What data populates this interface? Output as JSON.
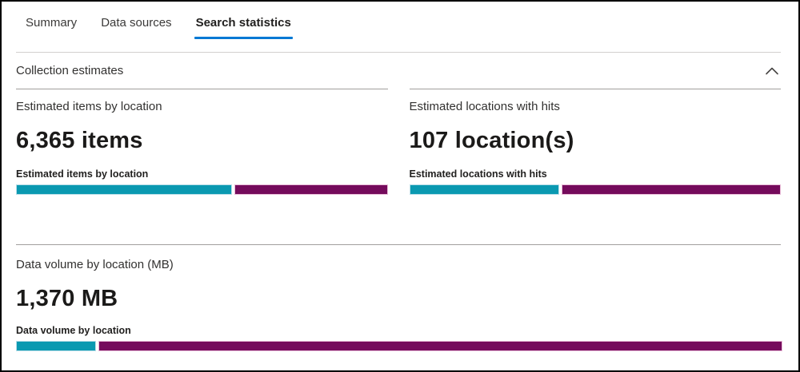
{
  "tabs": {
    "items": [
      {
        "label": "Summary"
      },
      {
        "label": "Data sources"
      },
      {
        "label": "Search statistics"
      }
    ],
    "active_tab": "Search statistics"
  },
  "section": {
    "title": "Collection estimates",
    "collapse_icon": "chevron-up-icon",
    "state": "expanded"
  },
  "colors": {
    "teal": "#0A99B1",
    "magenta": "#750B5C",
    "accent": "#0078D4"
  },
  "metrics": [
    {
      "label": "Estimated items by location",
      "value": "6,365 items",
      "chart_label": "Estimated items by location"
    },
    {
      "label": "Estimated locations with hits",
      "value": "107 location(s)",
      "chart_label": "Estimated locations with hits"
    },
    {
      "label": "Data volume by location (MB)",
      "value": "1,370 MB",
      "chart_label": "Data volume by location"
    }
  ],
  "chart_data": [
    {
      "type": "bar",
      "title": "Estimated items by location",
      "total_label": "6,365 items",
      "orientation": "horizontal-stacked",
      "segments": [
        {
          "name": "teal-segment",
          "color": "#0A99B1",
          "percent": 58.4
        },
        {
          "name": "magenta-segment",
          "color": "#750B5C",
          "percent": 41.6
        }
      ]
    },
    {
      "type": "bar",
      "title": "Estimated locations with hits",
      "total_label": "107 location(s)",
      "orientation": "horizontal-stacked",
      "segments": [
        {
          "name": "teal-segment",
          "color": "#0A99B1",
          "percent": 40.7
        },
        {
          "name": "magenta-segment",
          "color": "#750B5C",
          "percent": 59.3
        }
      ]
    },
    {
      "type": "bar",
      "title": "Data volume by location",
      "total_label": "1,370 MB",
      "orientation": "horizontal-stacked",
      "segments": [
        {
          "name": "teal-segment",
          "color": "#0A99B1",
          "percent": 10.5
        },
        {
          "name": "magenta-segment",
          "color": "#750B5C",
          "percent": 89.5
        }
      ]
    }
  ]
}
